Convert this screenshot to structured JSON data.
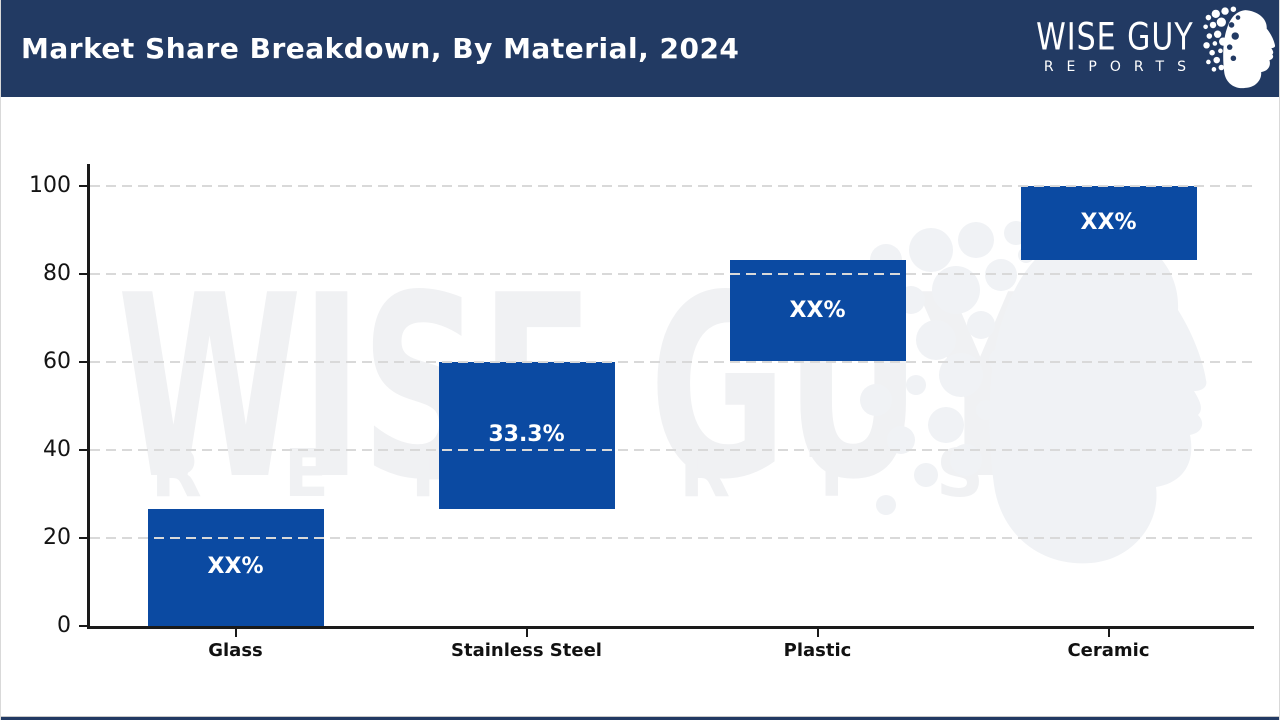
{
  "header": {
    "title": "Market Share Breakdown, By Material, 2024",
    "logo": {
      "line1": "WISE GUY",
      "line2": "REPORTS"
    },
    "bg_color": "#223a63"
  },
  "watermark": {
    "line1": "WISE GUY",
    "line2": "REPORTS"
  },
  "chart_data": {
    "type": "bar",
    "subtype": "waterfall",
    "title": "Market Share Breakdown, By Material, 2024",
    "categories": [
      "Glass",
      "Stainless Steel",
      "Plastic",
      "Ceramic"
    ],
    "segments": [
      {
        "category": "Glass",
        "start": 0,
        "end": 26.6,
        "label": "XX%"
      },
      {
        "category": "Stainless Steel",
        "start": 26.6,
        "end": 60.0,
        "label": "33.3%"
      },
      {
        "category": "Plastic",
        "start": 60.2,
        "end": 83.2,
        "label": "XX%"
      },
      {
        "category": "Ceramic",
        "start": 83.2,
        "end": 100.0,
        "label": "XX%"
      }
    ],
    "ylim": [
      0,
      100
    ],
    "yticks": [
      0,
      20,
      40,
      60,
      80,
      100
    ],
    "xlabel": "",
    "ylabel": "",
    "grid": "horizontal-dashed",
    "legend": "none",
    "bar_color": "#0b4aa2",
    "bar_label_color": "#ffffff",
    "axis_color": "#1a1a1a",
    "gridline_color": "#d9d9d9"
  }
}
